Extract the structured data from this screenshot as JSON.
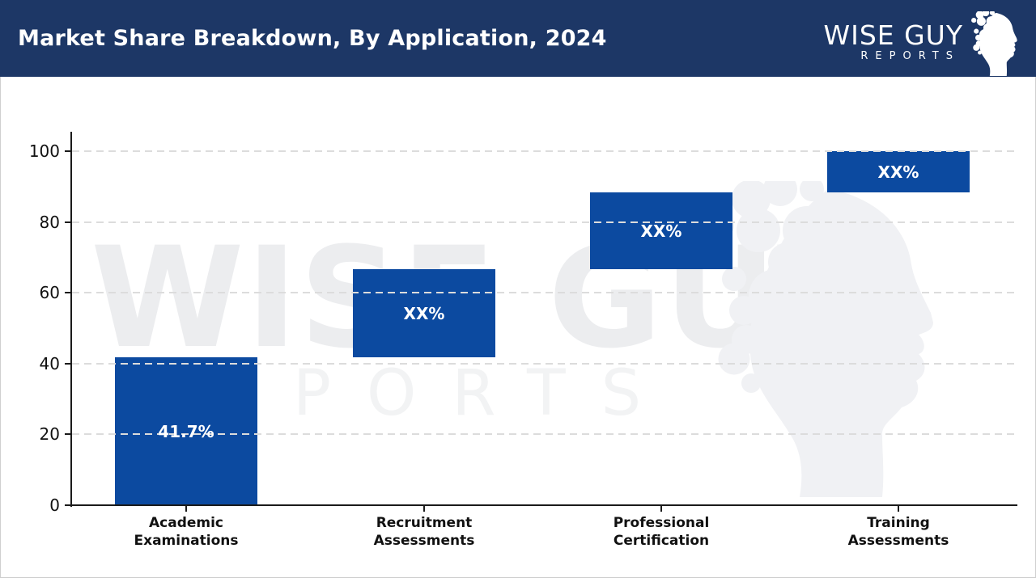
{
  "header": {
    "title": "Market Share Breakdown, By Application, 2024",
    "background_color": "#1d3766",
    "logo": {
      "brand_line1": "WISE GUY",
      "brand_line2": "REPORTS"
    }
  },
  "watermark": {
    "line1": "WISE GUY",
    "line2": "PORTS"
  },
  "chart_data": {
    "type": "bar",
    "subtype": "waterfall",
    "title": "Market Share Breakdown, By Application, 2024",
    "ylim": [
      0,
      100
    ],
    "yticks": [
      0,
      20,
      40,
      60,
      80,
      100
    ],
    "grid": "horizontal-dashed",
    "legend": "none",
    "bar_color": "#0c4aa0",
    "value_label_color": "#ffffff",
    "gridline_color": "#dcdcdc",
    "categories": [
      "Academic Examinations",
      "Recruitment Assessments",
      "Professional Certification",
      "Training Assessments"
    ],
    "category_lines": [
      [
        "Academic",
        "Examinations"
      ],
      [
        "Recruitment",
        "Assessments"
      ],
      [
        "Professional",
        "Certification"
      ],
      [
        "Training",
        "Assessments"
      ]
    ],
    "segments": [
      {
        "category": "Academic Examinations",
        "start": 0.0,
        "end": 41.7,
        "value": 41.7,
        "label": "41.7%"
      },
      {
        "category": "Recruitment Assessments",
        "start": 41.7,
        "end": 66.7,
        "value": 25.0,
        "label": "XX%"
      },
      {
        "category": "Professional Certification",
        "start": 66.7,
        "end": 88.3,
        "value": 21.6,
        "label": "XX%"
      },
      {
        "category": "Training Assessments",
        "start": 88.3,
        "end": 100.0,
        "value": 11.7,
        "label": "XX%"
      }
    ]
  }
}
